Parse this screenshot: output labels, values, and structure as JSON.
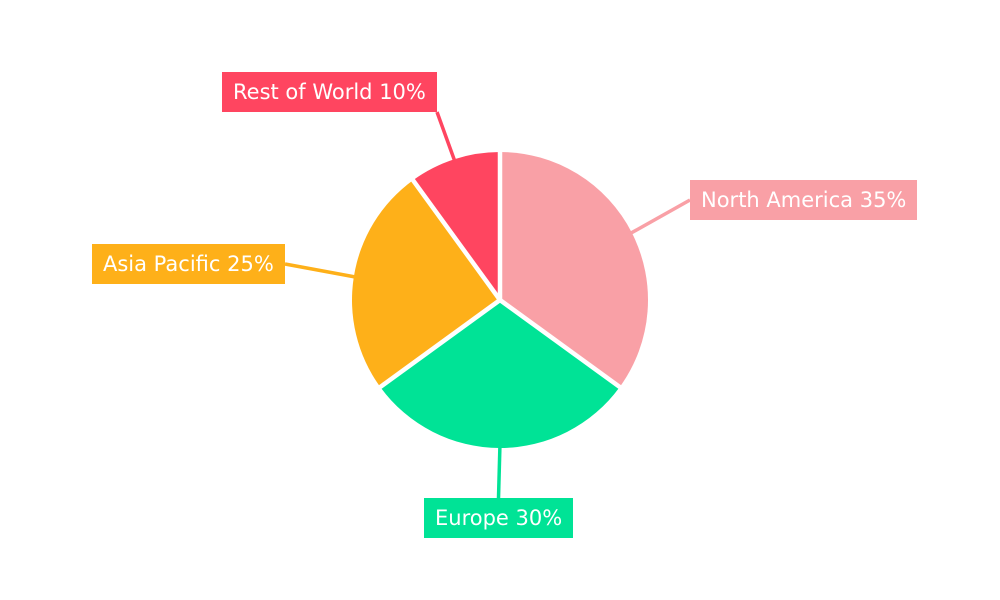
{
  "chart_data": {
    "type": "pie",
    "title": "",
    "start_angle_deg": 0,
    "direction": "clockwise",
    "background_color": "#ffffff",
    "separator_color": "#ffffff",
    "slices": [
      {
        "label": "North America",
        "value": 35,
        "display": "North America 35%",
        "color": "#F9A0A6"
      },
      {
        "label": "Europe",
        "value": 30,
        "display": "Europe 30%",
        "color": "#00E396"
      },
      {
        "label": "Asia Pacific",
        "value": 25,
        "display": "Asia Pacific 25%",
        "color": "#FEB019"
      },
      {
        "label": "Rest of World",
        "value": 10,
        "display": "Rest of World 10%",
        "color": "#FF4560"
      }
    ]
  }
}
